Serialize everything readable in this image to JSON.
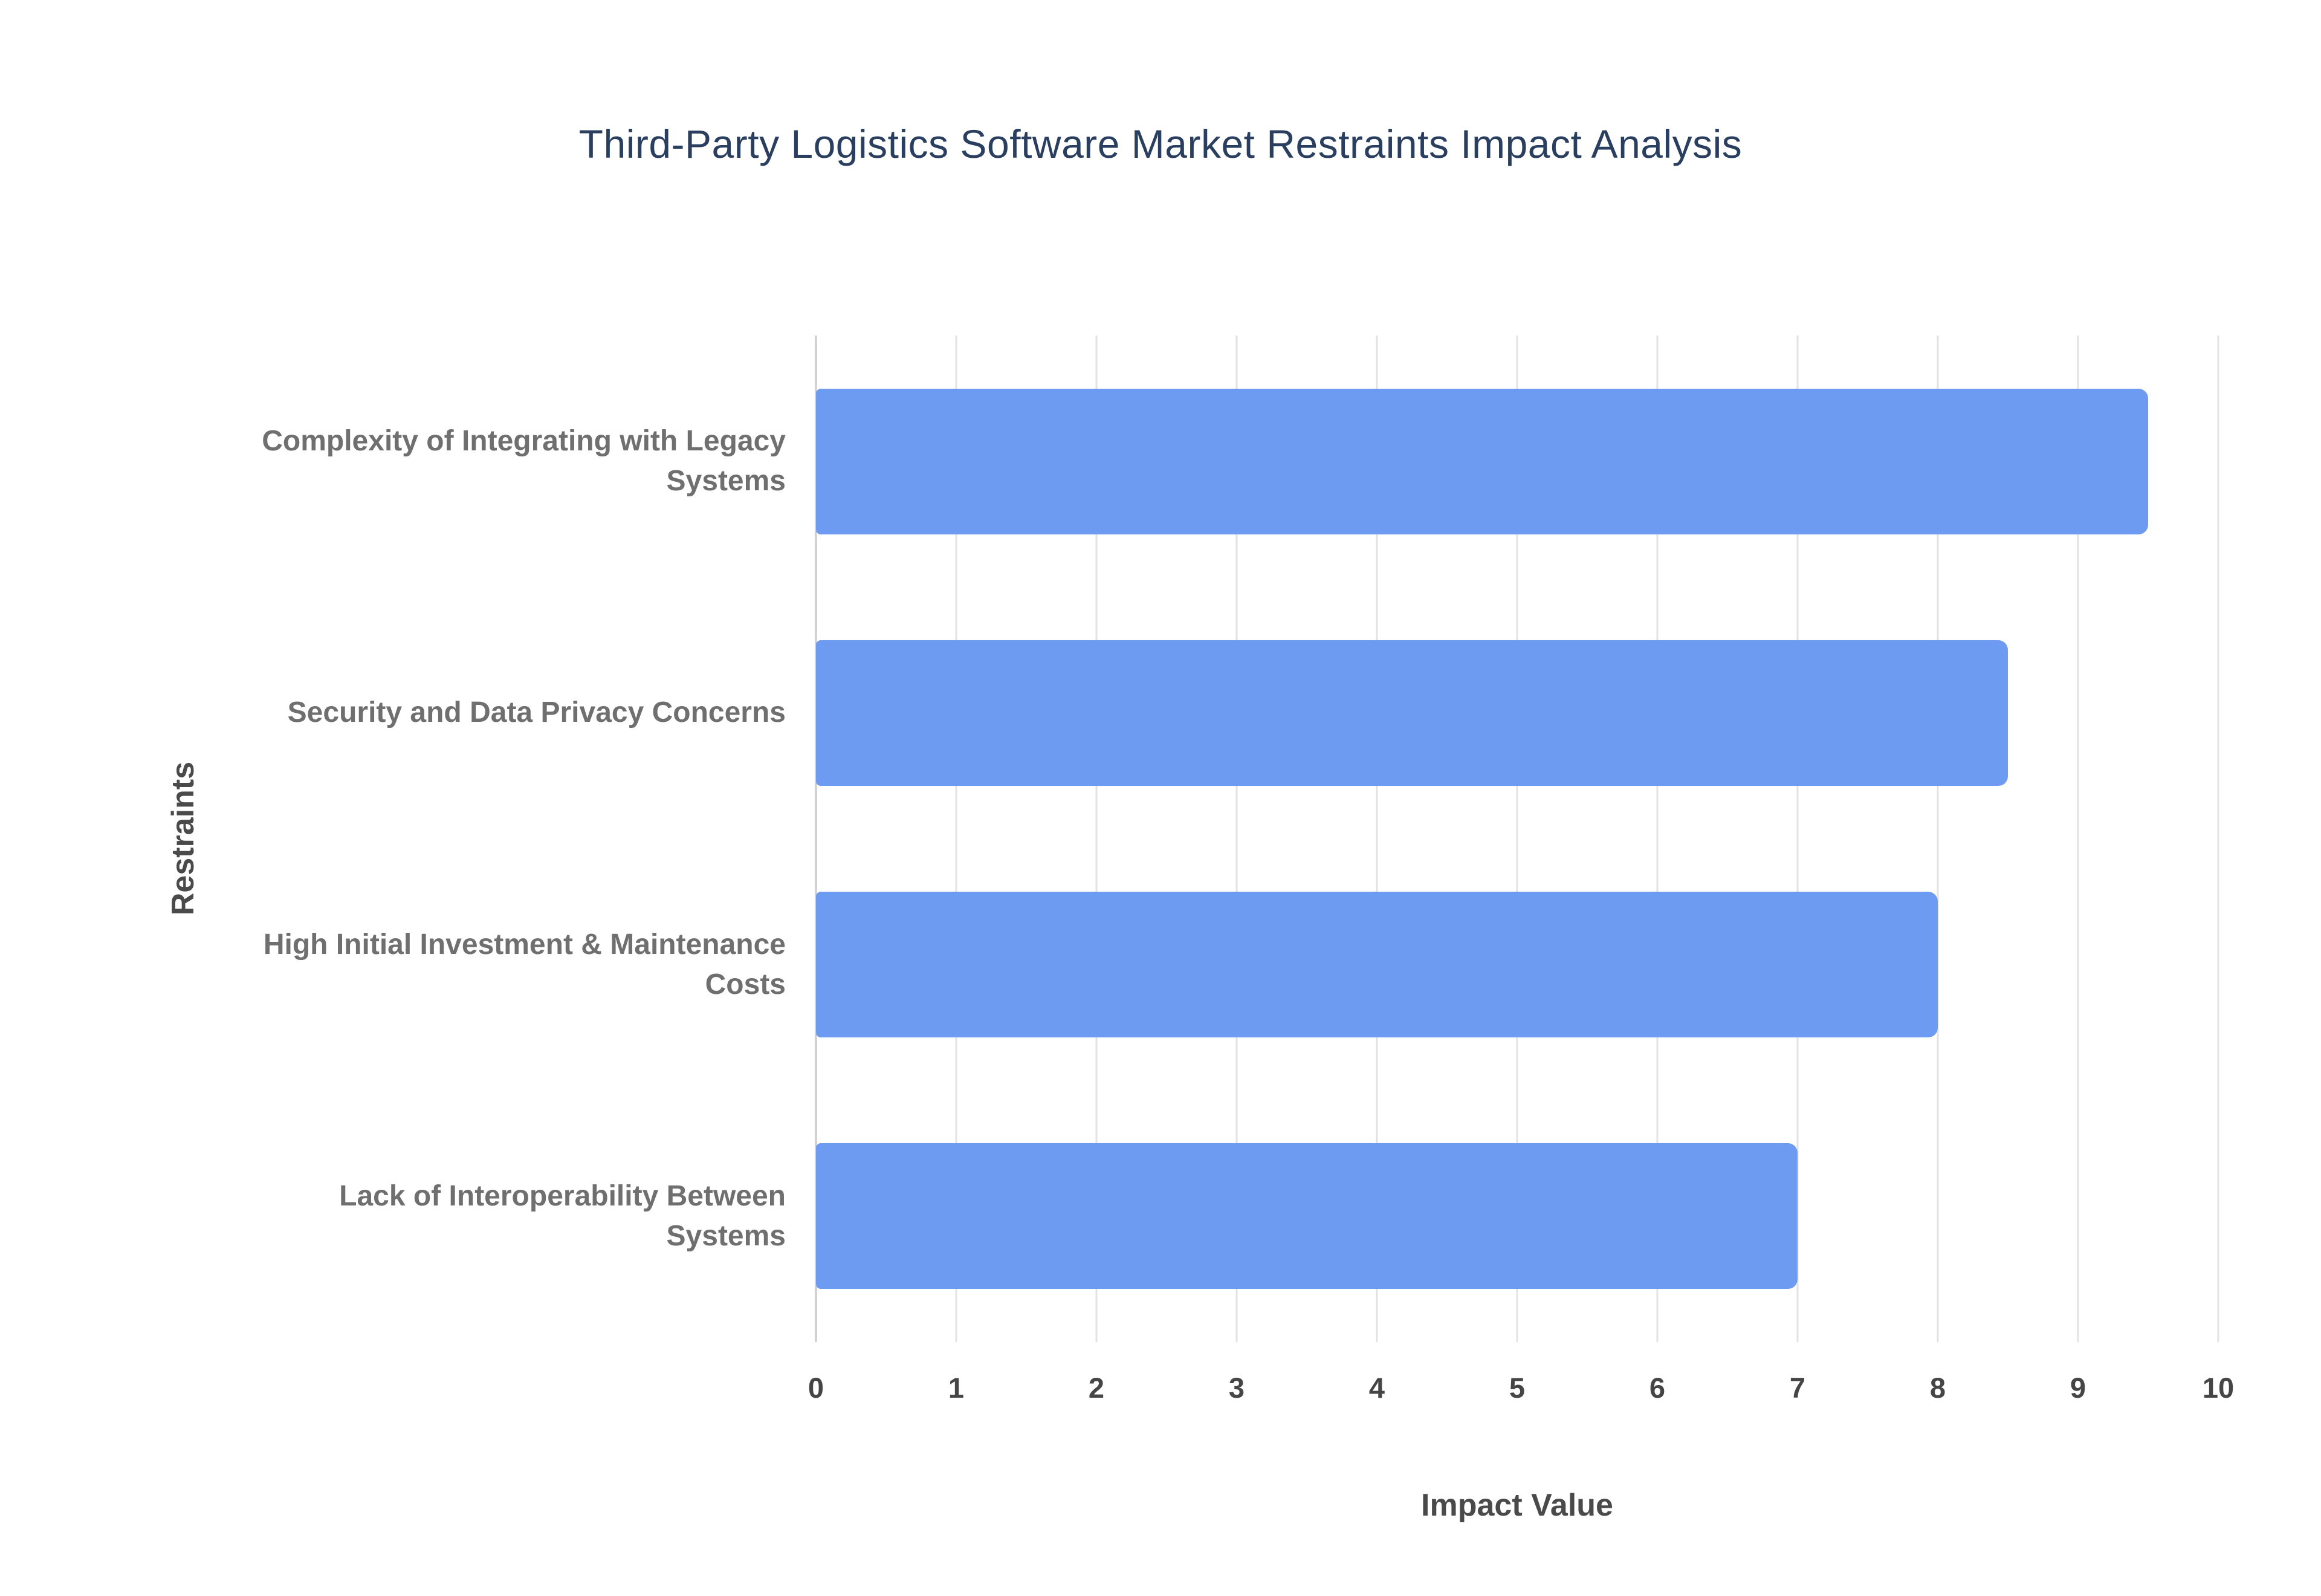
{
  "chart_data": {
    "type": "bar",
    "orientation": "horizontal",
    "title": "Third-Party Logistics Software Market Restraints Impact Analysis",
    "xlabel": "Impact Value",
    "ylabel": "Restraints",
    "categories": [
      "Complexity of Integrating with Legacy Systems",
      "Security and Data Privacy Concerns",
      "High Initial Investment & Maintenance Costs",
      "Lack of Interoperability Between Systems"
    ],
    "values": [
      9.5,
      8.5,
      8,
      7
    ],
    "xlim": [
      0,
      10
    ],
    "xticks": [
      0,
      1,
      2,
      3,
      4,
      5,
      6,
      7,
      8,
      9,
      10
    ],
    "grid": "vertical",
    "legend": "none",
    "colors": {
      "bar": "#6D9BF2",
      "title": "#2a3f5f",
      "axis_title": "#4a4a4a",
      "tick_label": "#454545",
      "category_label": "#6f6f6f",
      "gridline": "#e2e2e2",
      "zero_line": "#c9c9c9",
      "background": "#ffffff"
    }
  }
}
